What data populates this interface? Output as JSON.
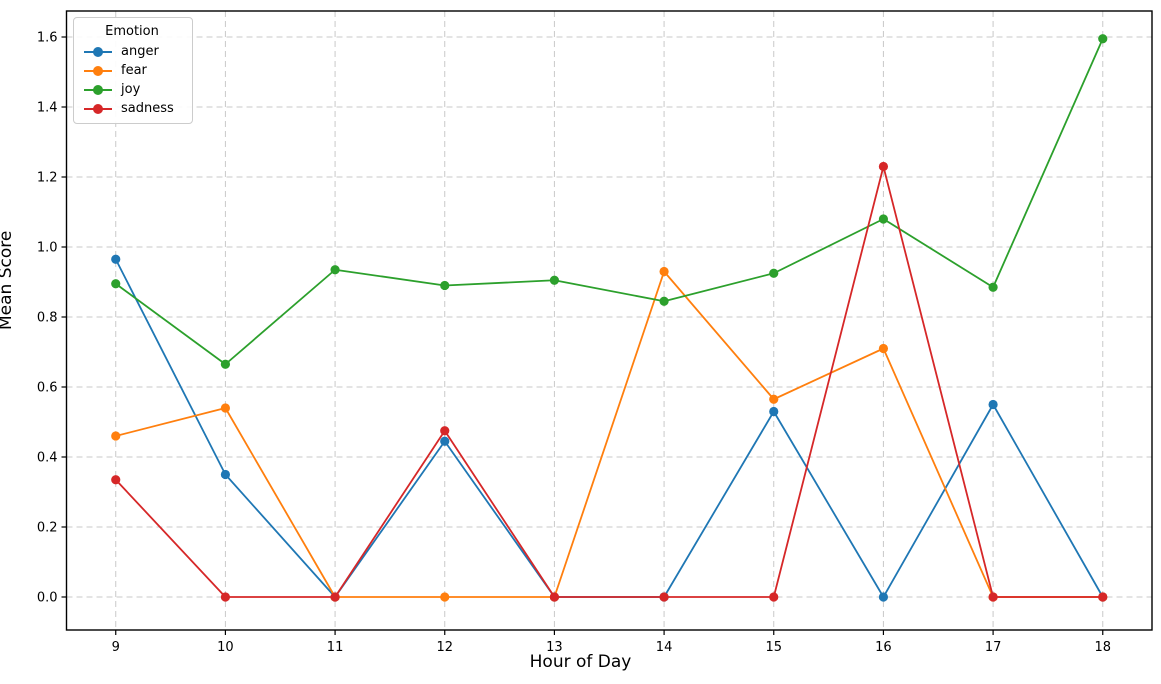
{
  "chart_data": {
    "type": "line",
    "title": "",
    "xlabel": "Hour of Day",
    "ylabel": "Mean Score",
    "x": [
      9,
      10,
      11,
      12,
      13,
      14,
      15,
      16,
      17,
      18
    ],
    "x_tick_labels": [
      "9",
      "10",
      "11",
      "12",
      "13",
      "14",
      "15",
      "16",
      "17",
      "18"
    ],
    "y_ticks": [
      0.0,
      0.2,
      0.4,
      0.6,
      0.8,
      1.0,
      1.2,
      1.4,
      1.6
    ],
    "y_tick_labels": [
      "0.0",
      "0.2",
      "0.4",
      "0.6",
      "0.8",
      "1.0",
      "1.2",
      "1.4",
      "1.6"
    ],
    "xlim": [
      8.551,
      18.449
    ],
    "ylim": [
      -0.0943,
      1.6743
    ],
    "grid": true,
    "grid_style": "dashed",
    "grid_color": "#c9c9c9",
    "spine_color": "#000000",
    "legend": {
      "title": "Emotion",
      "position": "upper-left"
    },
    "series": [
      {
        "name": "anger",
        "color": "#1f77b4",
        "values": [
          0.965,
          0.35,
          0.0,
          0.445,
          0.0,
          0.0,
          0.53,
          0.0,
          0.55,
          0.0
        ]
      },
      {
        "name": "fear",
        "color": "#ff7f0e",
        "values": [
          0.46,
          0.54,
          0.0,
          0.0,
          0.0,
          0.93,
          0.565,
          0.71,
          0.0,
          0.0
        ]
      },
      {
        "name": "joy",
        "color": "#2ca02c",
        "values": [
          0.895,
          0.665,
          0.935,
          0.89,
          0.905,
          0.845,
          0.925,
          1.08,
          0.885,
          1.595
        ]
      },
      {
        "name": "sadness",
        "color": "#d62728",
        "values": [
          0.335,
          0.0,
          0.0,
          0.475,
          0.0,
          0.0,
          0.0,
          1.23,
          0.0,
          0.0
        ]
      }
    ]
  }
}
